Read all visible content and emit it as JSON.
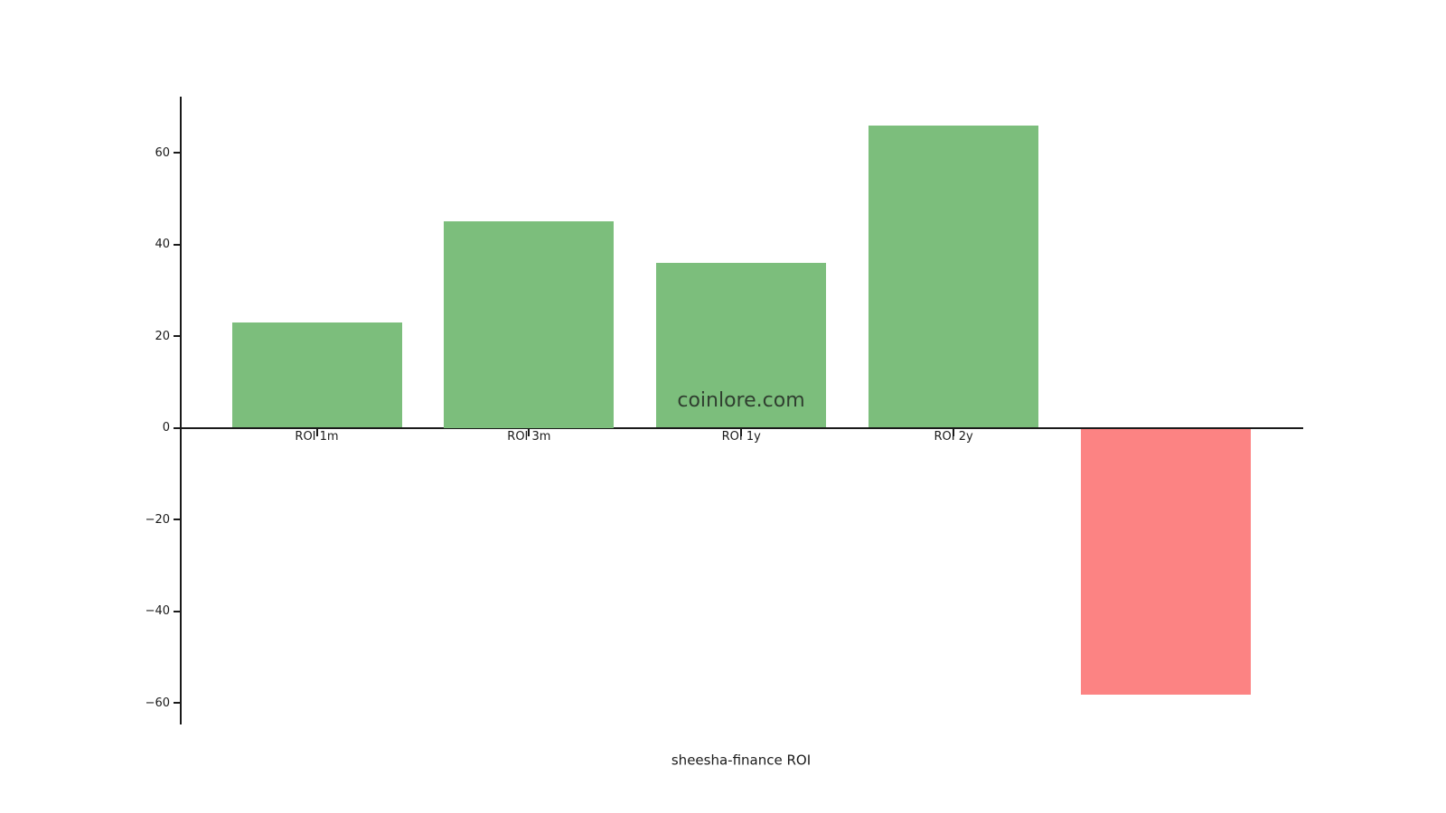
{
  "page": {
    "background": "#ffffff",
    "text_color": "#1a1a1a"
  },
  "watermark": {
    "text": "coinlore.com"
  },
  "chart_data": {
    "type": "bar",
    "title": "sheesha-finance ROI",
    "xlabel": "sheesha-finance ROI",
    "ylabel": "",
    "watermark": "coinlore.com",
    "categories": [
      "ROI 1m",
      "ROI 3m",
      "ROI 1y",
      "ROI 2y",
      ""
    ],
    "values": [
      23,
      45,
      36,
      66,
      -58
    ],
    "bar_colors": [
      "#7CBE7C",
      "#7CBE7C",
      "#7CBE7C",
      "#7CBE7C",
      "#FC8383"
    ],
    "positive_color": "#7CBE7C",
    "negative_color": "#FC8383",
    "y_ticks": [
      60,
      40,
      20,
      0,
      -20,
      -40,
      -60
    ],
    "ylim": [
      -65,
      72
    ],
    "grid": false,
    "legend": null,
    "axis_color": "#1a1a1a"
  }
}
